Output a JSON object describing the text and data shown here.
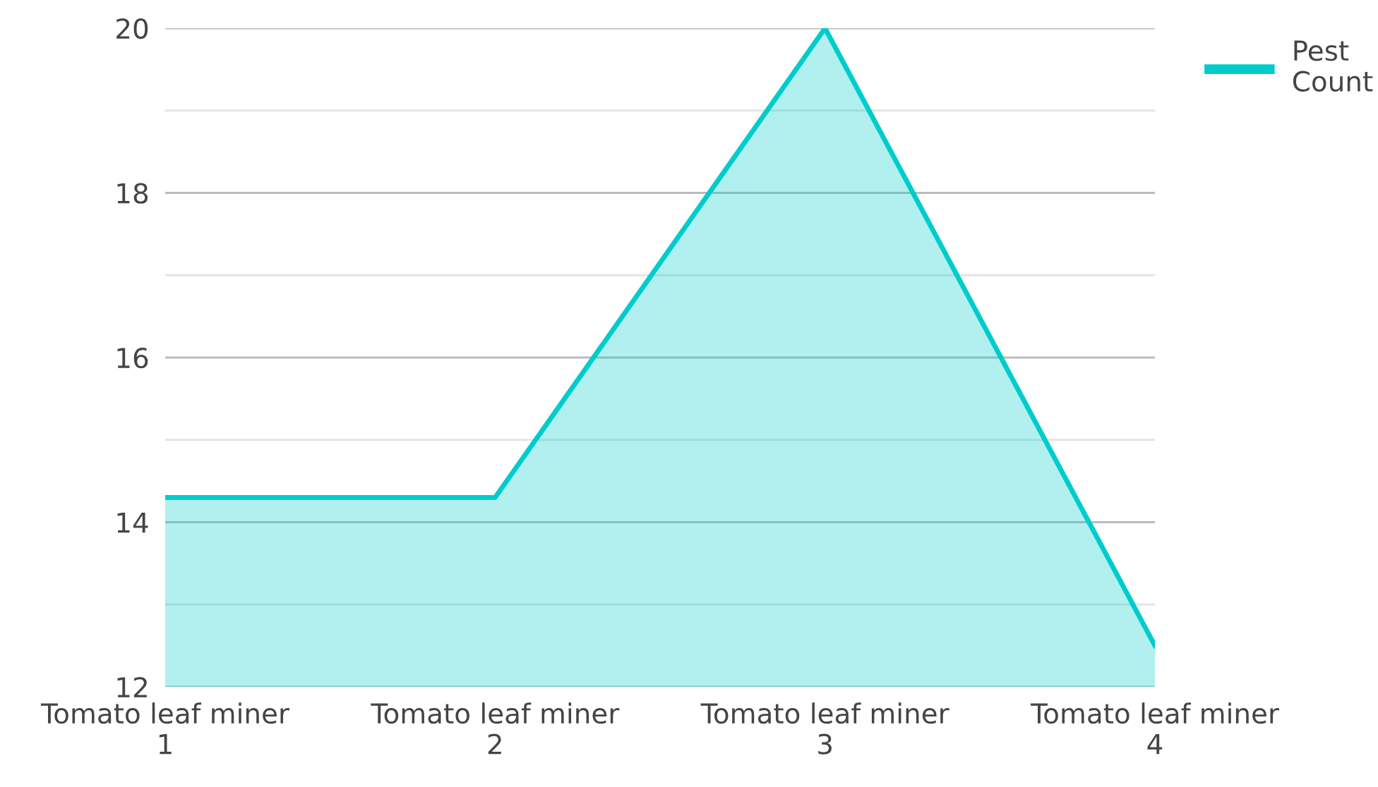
{
  "chart_data": {
    "type": "area",
    "categories": [
      "Tomato leaf miner\n1",
      "Tomato leaf miner\n2",
      "Tomato leaf miner\n3",
      "Tomato leaf miner\n4"
    ],
    "series": [
      {
        "name": "Pest\nCount",
        "color": "#00cccc",
        "values": [
          14.3,
          14.3,
          20,
          12.5
        ]
      }
    ],
    "ylim": [
      12,
      20
    ],
    "yticks": [
      12,
      {
        "value": 13,
        "label": null
      },
      14,
      {
        "value": 15,
        "label": null
      },
      16,
      {
        "value": 17,
        "label": null
      },
      18,
      {
        "value": 19,
        "label": null
      },
      20
    ],
    "grid": "y",
    "legend": "top right"
  }
}
